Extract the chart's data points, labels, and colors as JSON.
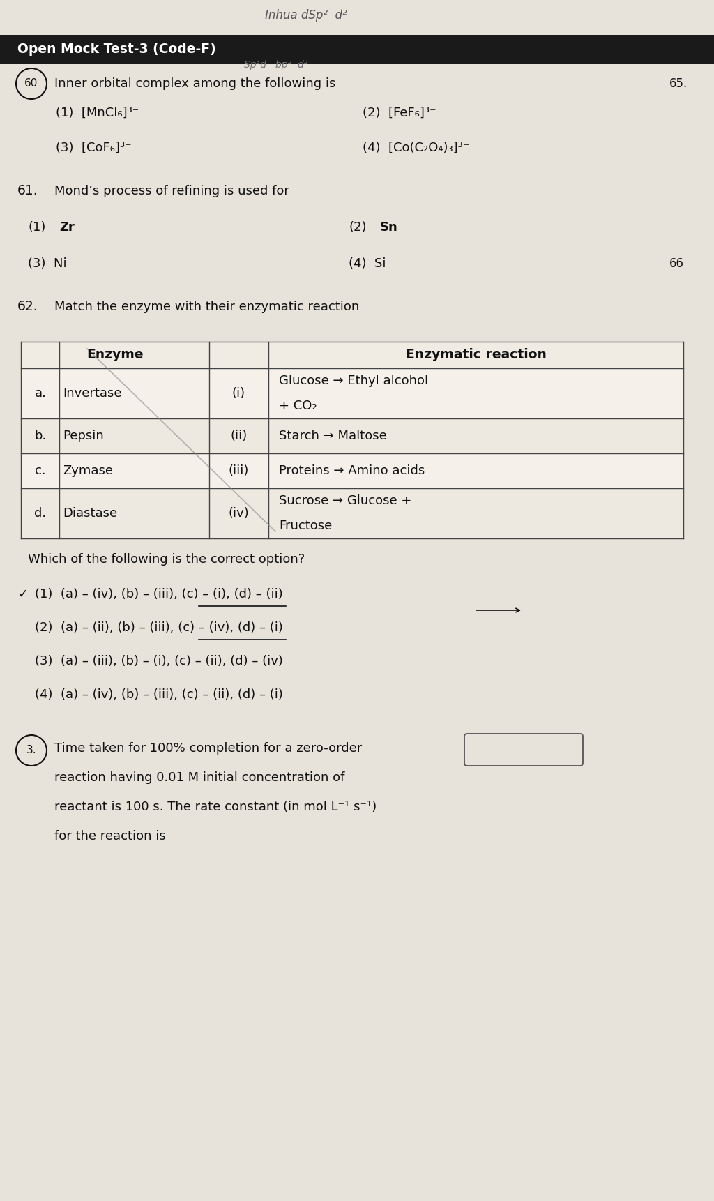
{
  "bg_color": "#d4cfc8",
  "page_bg": "#e8e3da",
  "header_bg": "#1a1a1a",
  "header_text": "Open Mock Test-3 (Code-F)",
  "header_color": "#ffffff",
  "q60_num": "60",
  "q60_text": "Inner orbital complex among the following is",
  "q60_opt1": "(1)  [MnCl₆]³⁻",
  "q60_opt2": "(2)  [FeF₆]³⁻",
  "q60_opt3": "(3)  [CoF₆]³⁻",
  "q60_opt4": "(4)  [Co(C₂O₄)₃]³⁻",
  "q61_num": "61.",
  "q61_text": "Mond’s process of refining is used for",
  "q61_opt1": "(1)  Zr",
  "q61_opt2": "(2)  Sn",
  "q61_opt3": "(3)  Ni",
  "q61_opt4": "(4)  Si",
  "q62_num": "62.",
  "q62_text": "Match the enzyme with their enzymatic reaction",
  "table_header_enzyme": "Enzyme",
  "table_header_reaction": "Enzymatic reaction",
  "table_rows": [
    {
      "label": "a.",
      "enzyme": "Invertase",
      "num": "(i)",
      "reaction": "Glucose → Ethyl alcohol\n+ CO₂"
    },
    {
      "label": "b.",
      "enzyme": "Pepsin",
      "num": "(ii)",
      "reaction": "Starch → Maltose"
    },
    {
      "label": "c.",
      "enzyme": "Zymase",
      "num": "(iii)",
      "reaction": "Proteins → Amino acids"
    },
    {
      "label": "d.",
      "enzyme": "Diastase",
      "num": "(iv)",
      "reaction": "Sucrose → Glucose +\nFructose"
    }
  ],
  "which_text": "Which of the following is the correct option?",
  "options": [
    "(1)  (a) – (iv), (b) – (iii), (c) – (i), (d) – (ii)",
    "(2)  (a) – (ii), (b) – (iii), (c) – (iv), (d) – (i)",
    "(3)  (a) – (iii), (b) – (i), (c) – (ii), (d) – (iv)",
    "(4)  (a) – (iv), (b) – (iii), (c) – (ii), (d) – (i)"
  ],
  "q63_num": "3.",
  "q63_text": "Time taken for 100% completion for a zero-order\nreaction having 0.01 M initial concentration of\nreactant is 100 s. The rate constant (in mol L⁻¹ s⁻¹)\nfor the reaction is",
  "handwriting_color": "#333333",
  "text_color": "#111111",
  "line_color": "#444444",
  "check_mark_color": "#222222"
}
